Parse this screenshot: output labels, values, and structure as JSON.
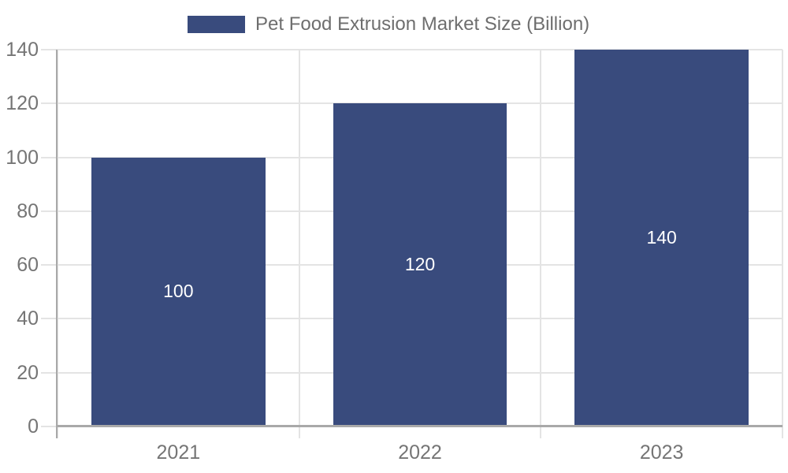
{
  "chart_data": {
    "type": "bar",
    "title": "Pet Food Extrusion Market Size (Billion)",
    "categories": [
      "2021",
      "2022",
      "2023"
    ],
    "values": [
      100,
      120,
      140
    ],
    "bar_labels": [
      "100",
      "120",
      "140"
    ],
    "xlabel": "",
    "ylabel": "",
    "ylim": [
      0,
      140
    ],
    "ytick_step": 20,
    "yticks": [
      0,
      20,
      40,
      60,
      80,
      100,
      120,
      140
    ],
    "grid": true,
    "legend": {
      "position": "top",
      "label": "Pet Food Extrusion Market Size (Billion)"
    },
    "colors": {
      "bar": "#394B7D",
      "grid": "#E4E4E4",
      "axis": "#A9A9A9",
      "tick_label": "#757575",
      "legend_text": "#6E6E6E",
      "bar_label": "#FFFFFF",
      "background": "#FFFFFF"
    }
  }
}
